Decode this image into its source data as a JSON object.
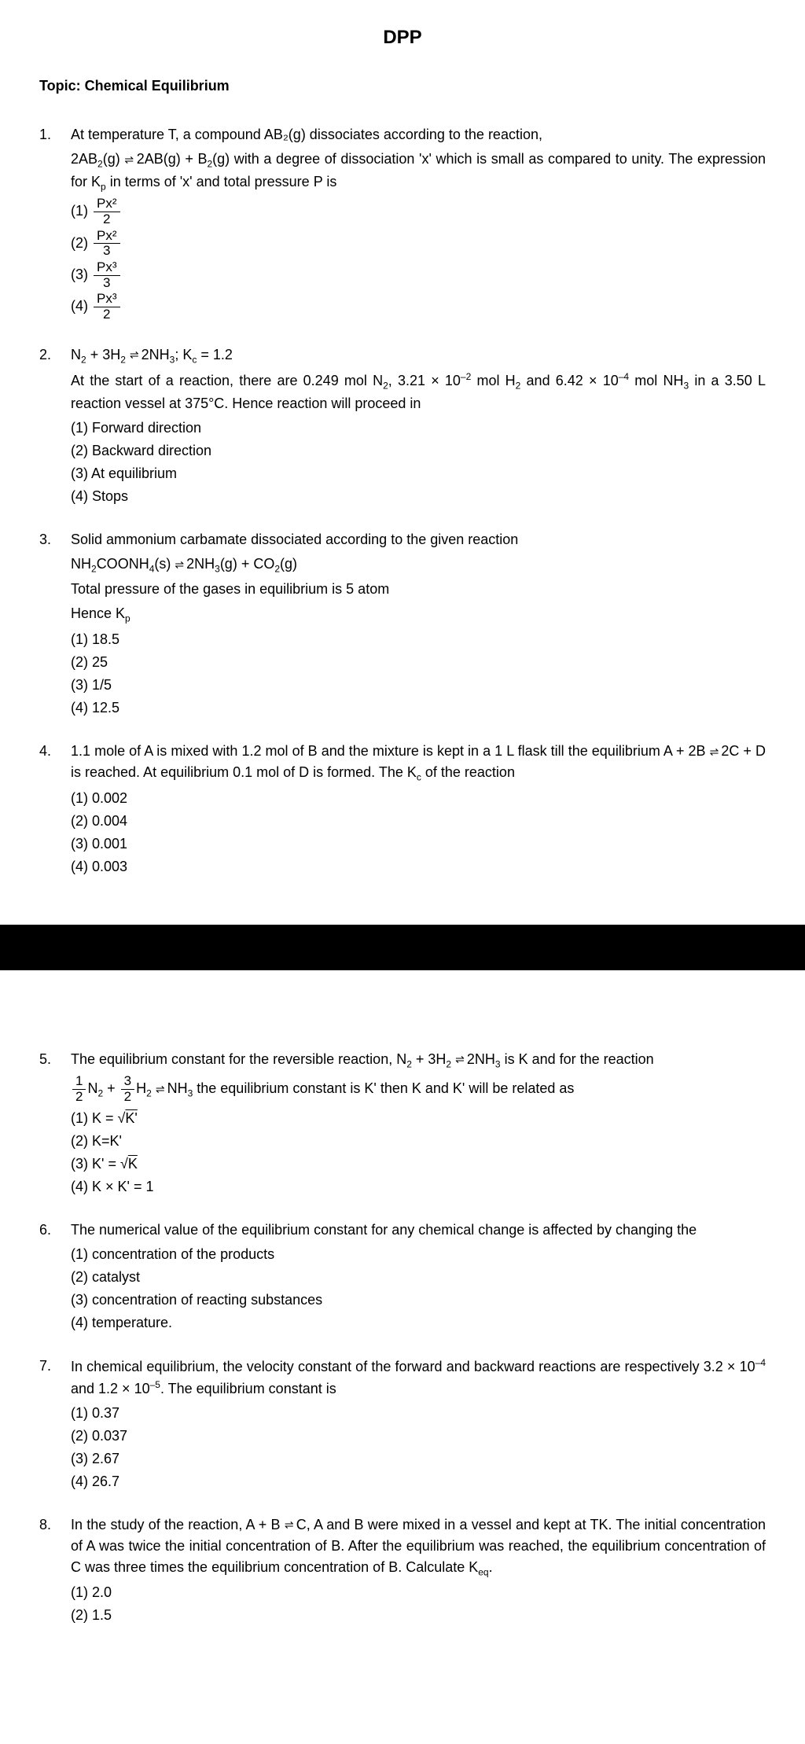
{
  "title": "DPP",
  "topic_label": "Topic: Chemical Equilibrium",
  "questions": [
    {
      "num": "1.",
      "stem1": "At temperature T, a compound AB₂(g) dissociates according to the reaction,",
      "stem2": "2AB₂(g) ⇌ 2AB(g) + B₂(g) with a degree of dissociation 'x' which is small as compared to unity. The expression for Kₚ in terms of 'x' and total pressure P is",
      "opts": [
        {
          "n": "(1)",
          "frac_num": "Px²",
          "frac_den": "2"
        },
        {
          "n": "(2)",
          "frac_num": "Px²",
          "frac_den": "3"
        },
        {
          "n": "(3)",
          "frac_num": "Px³",
          "frac_den": "3"
        },
        {
          "n": "(4)",
          "frac_num": "Px³",
          "frac_den": "2"
        }
      ]
    },
    {
      "num": "2.",
      "stem1": "N₂ + 3H₂ ⇌ 2NH₃; K꜀ = 1.2",
      "stem2": "At the start of a reaction, there are 0.249 mol N₂, 3.21 × 10⁻² mol H₂ and 6.42 × 10⁻⁴ mol NH₃ in a 3.50 L reaction vessel at 375°C. Hence reaction will proceed in",
      "opts": [
        {
          "t": "(1) Forward direction"
        },
        {
          "t": "(2) Backward direction"
        },
        {
          "t": "(3) At equilibrium"
        },
        {
          "t": "(4) Stops"
        }
      ]
    },
    {
      "num": "3.",
      "stem1": "Solid ammonium carbamate dissociated according to the given reaction",
      "stem2": "NH₂COONH₄(s) ⇌ 2NH₃(g) + CO₂(g)",
      "stem3": "Total pressure of the gases in equilibrium is 5 atom",
      "stem4": "Hence Kₚ",
      "opts": [
        {
          "t": "(1) 18.5"
        },
        {
          "t": "(2) 25"
        },
        {
          "t": "(3) 1/5"
        },
        {
          "t": "(4) 12.5"
        }
      ]
    },
    {
      "num": "4.",
      "stem1": "1.1 mole of A is mixed with 1.2 mol of B and the mixture is kept in a 1 L flask till the equilibrium A + 2B ⇌ 2C + D is reached. At equilibrium 0.1 mol of D is formed. The K꜀ of the reaction",
      "opts": [
        {
          "t": "(1) 0.002"
        },
        {
          "t": "(2) 0.004"
        },
        {
          "t": "(3) 0.001"
        },
        {
          "t": "(4) 0.003"
        }
      ]
    },
    {
      "num": "5.",
      "stem1": "The equilibrium constant for the reversible reaction, N₂ + 3H₂ ⇌ 2NH₃ is K and for the reaction",
      "stem2_pre": "½N₂ + ³⁄₂H₂ ⇌ NH₃ the equilibrium constant is K' then K and K' will be related as",
      "opts": [
        {
          "t": "(1) K = √K'"
        },
        {
          "t": "(2) K=K'"
        },
        {
          "t": "(3) K' = √K"
        },
        {
          "t": "(4) K × K' = 1"
        }
      ]
    },
    {
      "num": "6.",
      "stem1": "The numerical value of the equilibrium constant for any chemical change is affected by changing the",
      "opts": [
        {
          "t": "(1) concentration of the products"
        },
        {
          "t": "(2) catalyst"
        },
        {
          "t": "(3) concentration of reacting substances"
        },
        {
          "t": "(4) temperature."
        }
      ]
    },
    {
      "num": "7.",
      "stem1": "In chemical equilibrium, the velocity constant of the forward and backward reactions are respectively 3.2 × 10⁻⁴ and 1.2 × 10⁻⁵. The equilibrium constant is",
      "opts": [
        {
          "t": "(1) 0.37"
        },
        {
          "t": "(2) 0.037"
        },
        {
          "t": "(3) 2.67"
        },
        {
          "t": "(4) 26.7"
        }
      ]
    },
    {
      "num": "8.",
      "stem1": "In the study of the reaction, A + B ⇌ C, A and B were mixed in a vessel and kept at TK. The initial concentration of A was twice the initial concentration of B. After the equilibrium was reached, the equilibrium concentration of C was three times the equilibrium concentration of B. Calculate Kₑq.",
      "opts": [
        {
          "t": "(1) 2.0"
        },
        {
          "t": "(2) 1.5"
        }
      ]
    }
  ]
}
